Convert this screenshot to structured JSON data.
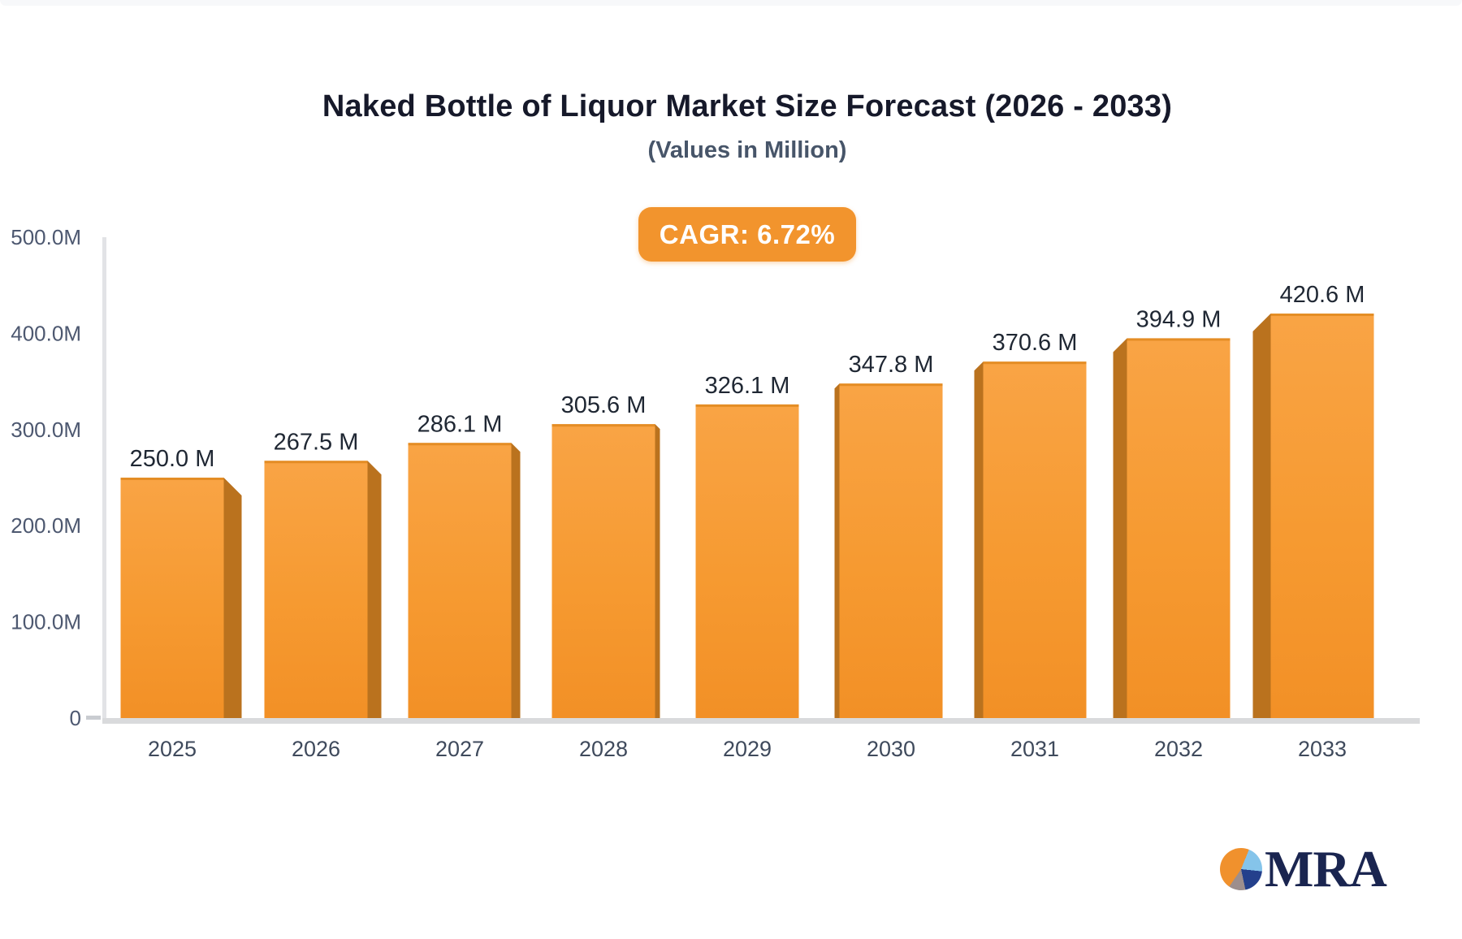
{
  "chart_data": {
    "type": "bar",
    "title": "Naked Bottle of Liquor Market Size Forecast (2026 - 2033)",
    "subtitle": "(Values in Million)",
    "annotation": "CAGR: 6.72%",
    "categories": [
      "2025",
      "2026",
      "2027",
      "2028",
      "2029",
      "2030",
      "2031",
      "2032",
      "2033"
    ],
    "values": [
      250.0,
      267.5,
      286.1,
      305.6,
      326.1,
      347.8,
      370.6,
      394.9,
      420.6
    ],
    "value_labels": [
      "250.0 M",
      "267.5 M",
      "286.1 M",
      "305.6 M",
      "326.1 M",
      "347.8 M",
      "370.6 M",
      "394.9 M",
      "420.6 M"
    ],
    "xlabel": "",
    "ylabel": "",
    "ylim": [
      0,
      500
    ],
    "yticks": [
      {
        "value": 0,
        "label": "0"
      },
      {
        "value": 100,
        "label": "100.0M"
      },
      {
        "value": 200,
        "label": "200.0M"
      },
      {
        "value": 300,
        "label": "300.0M"
      },
      {
        "value": 400,
        "label": "400.0M"
      },
      {
        "value": 500,
        "label": "500.0M"
      }
    ],
    "grid": "off",
    "legend": "none",
    "colors": {
      "bar_top": "#f9a445",
      "bar_mid": "#f69a31",
      "bar_bottom": "#f29026",
      "bar_side": "#ba721e",
      "bar_top_edge": "#e08a20",
      "axis_line": "#e2e3e6",
      "baseline": "#d9dadc",
      "zero_tick": "#c9ccd1",
      "value_label": "#1f2733",
      "x_label": "#3f4a5c",
      "y_label": "#4d5870"
    }
  },
  "badge": {
    "bg_color": "#f2942d",
    "text_color": "#ffffff"
  },
  "logo": {
    "text": "MRA",
    "pie_colors": {
      "orange": "#f0912d",
      "light_blue": "#85c4ea",
      "navy": "#24408c",
      "taupe": "#9d8e8d"
    },
    "text_color": "#1a2550"
  }
}
